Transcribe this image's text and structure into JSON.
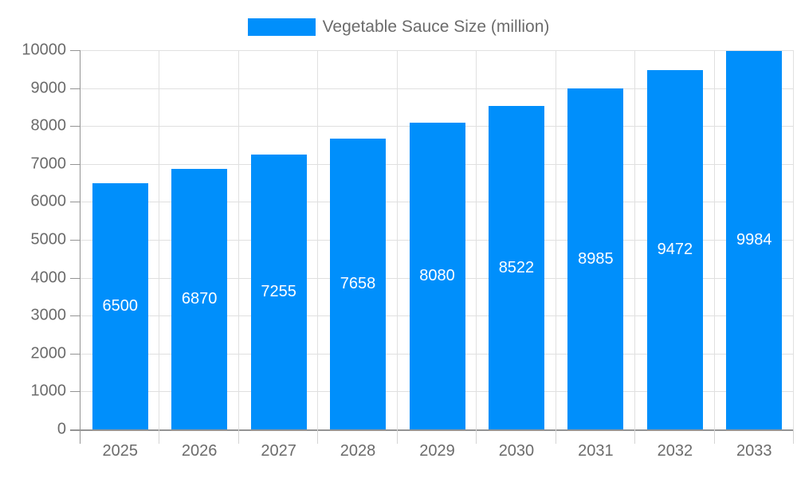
{
  "chart_data": {
    "type": "bar",
    "title": "Vegetable Sauce Size (million)",
    "legend": {
      "position": "top",
      "entries": [
        "Vegetable Sauce Size (million)"
      ]
    },
    "categories": [
      "2025",
      "2026",
      "2027",
      "2028",
      "2029",
      "2030",
      "2031",
      "2032",
      "2033"
    ],
    "series": [
      {
        "name": "Vegetable Sauce Size (million)",
        "values": [
          6500,
          6870,
          7255,
          7658,
          8080,
          8522,
          8985,
          9472,
          9984
        ]
      }
    ],
    "value_labels": [
      "6500",
      "6870",
      "7255",
      "7658",
      "8080",
      "8522",
      "8985",
      "9472",
      "9984"
    ],
    "xlabel": "",
    "ylabel": "",
    "ylim": [
      0,
      10000
    ],
    "ytick_step": 1000,
    "ytick_labels": [
      "0",
      "1000",
      "2000",
      "3000",
      "4000",
      "5000",
      "6000",
      "7000",
      "8000",
      "9000",
      "10000"
    ],
    "grid": true,
    "colors": {
      "bar": "#008FFB",
      "value_label": "#ffffff",
      "axis_text": "#6b6b6b",
      "axis_line": "#949494",
      "gridline": "#e0e0e0",
      "boundary_tick": "#d4d4d4",
      "background": "#ffffff"
    }
  }
}
